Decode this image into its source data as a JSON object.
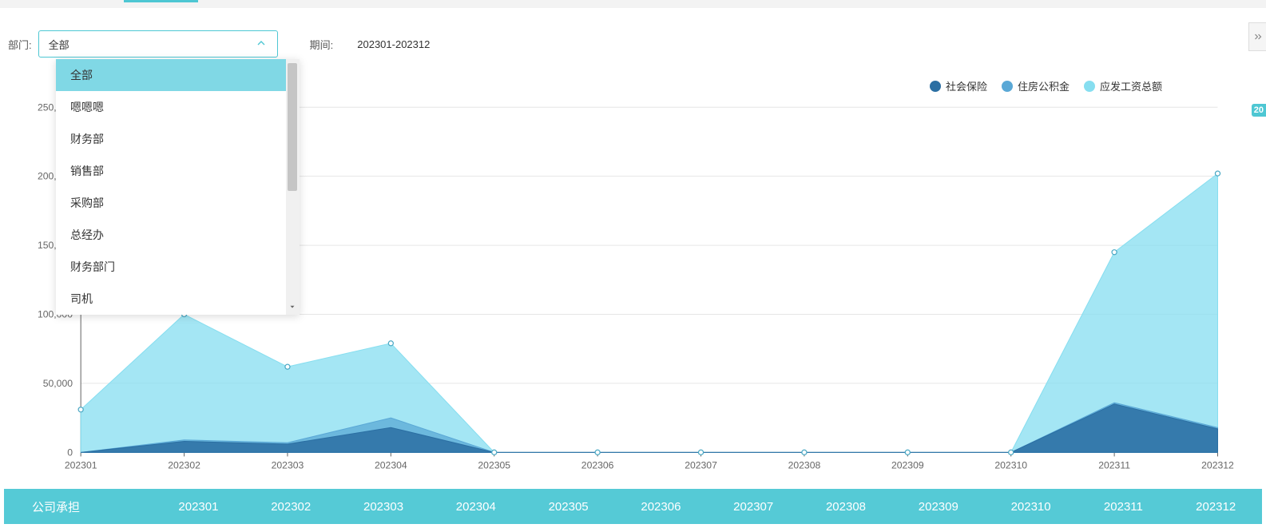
{
  "filters": {
    "dept_label": "部门:",
    "dept_selected": "全部",
    "period_label": "期间:",
    "period_value": "202301-202312"
  },
  "dropdown": {
    "options": [
      "全部",
      "嗯嗯嗯",
      "财务部",
      "销售部",
      "采购部",
      "总经办",
      "财务部门",
      "司机"
    ]
  },
  "chart": {
    "type": "area",
    "background_color": "#ffffff",
    "grid_color": "#e6e6e6",
    "axis_color": "#666666",
    "tick_fontsize": 12,
    "xlabels": [
      "202301",
      "202302",
      "202303",
      "202304",
      "202305",
      "202306",
      "202307",
      "202308",
      "202309",
      "202310",
      "202311",
      "202312"
    ],
    "ylim": [
      0,
      250000
    ],
    "ytick_step": 50000,
    "ytick_labels": [
      "0",
      "50,000",
      "100,000",
      "150,000",
      "200,000",
      "250,000"
    ],
    "legend": [
      {
        "label": "社会保险",
        "color": "#2b6fa3"
      },
      {
        "label": "住房公积金",
        "color": "#5aa8d6"
      },
      {
        "label": "应发工资总额",
        "color": "#86def0"
      }
    ],
    "series": {
      "social": {
        "color": "#2b6fa3",
        "fill_opacity": 0.85,
        "data": [
          0,
          8000,
          6000,
          18000,
          0,
          0,
          0,
          0,
          0,
          0,
          35000,
          17000
        ]
      },
      "housing": {
        "color": "#5aa8d6",
        "fill_opacity": 0.75,
        "data": [
          0,
          9000,
          7000,
          25000,
          0,
          0,
          0,
          0,
          0,
          0,
          36000,
          18000
        ]
      },
      "gross": {
        "color": "#86def0",
        "fill_opacity": 0.75,
        "data": [
          31000,
          100000,
          62000,
          79000,
          0,
          0,
          0,
          0,
          0,
          0,
          145000,
          202000
        ]
      }
    },
    "marker": {
      "size": 3,
      "stroke": "#4aa8c4",
      "fill": "#ffffff"
    }
  },
  "badge": {
    "text": "20",
    "color": "#4ec7d3"
  },
  "table": {
    "bg_color": "#55cad6",
    "text_color": "#ffffff",
    "first_header": "公司承担",
    "month_headers": [
      "202301",
      "202302",
      "202303",
      "202304",
      "202305",
      "202306",
      "202307",
      "202308",
      "202309",
      "202310",
      "202311",
      "202312"
    ]
  }
}
